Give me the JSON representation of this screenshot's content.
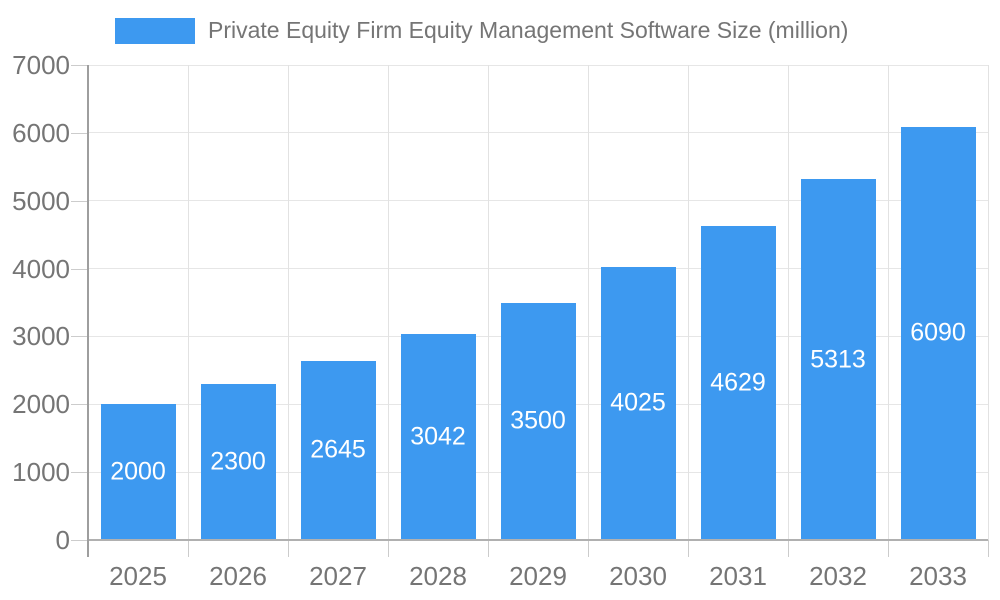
{
  "chart_data": {
    "type": "bar",
    "title": "Private Equity Firm Equity Management Software Size (million)",
    "categories": [
      "2025",
      "2026",
      "2027",
      "2028",
      "2029",
      "2030",
      "2031",
      "2032",
      "2033"
    ],
    "values": [
      2000,
      2300,
      2645,
      3042,
      3500,
      4025,
      4629,
      5313,
      6090
    ],
    "xlabel": "",
    "ylabel": "",
    "ylim": [
      0,
      7000
    ],
    "ytick_step": 1000,
    "grid": true,
    "legend_position": "top-left",
    "colors": {
      "bar": "#3D99F0",
      "bar_value_label": "#FFFFFF",
      "axis_text": "#757575",
      "legend_text": "#757575",
      "hgridline": "#E6E6E6",
      "vgridline": "#E2E2E2",
      "tick": "#CCCCCC",
      "axis_line": "#9E9E9E",
      "baseline": "#B0B0B0",
      "background": "#FFFFFF"
    }
  }
}
